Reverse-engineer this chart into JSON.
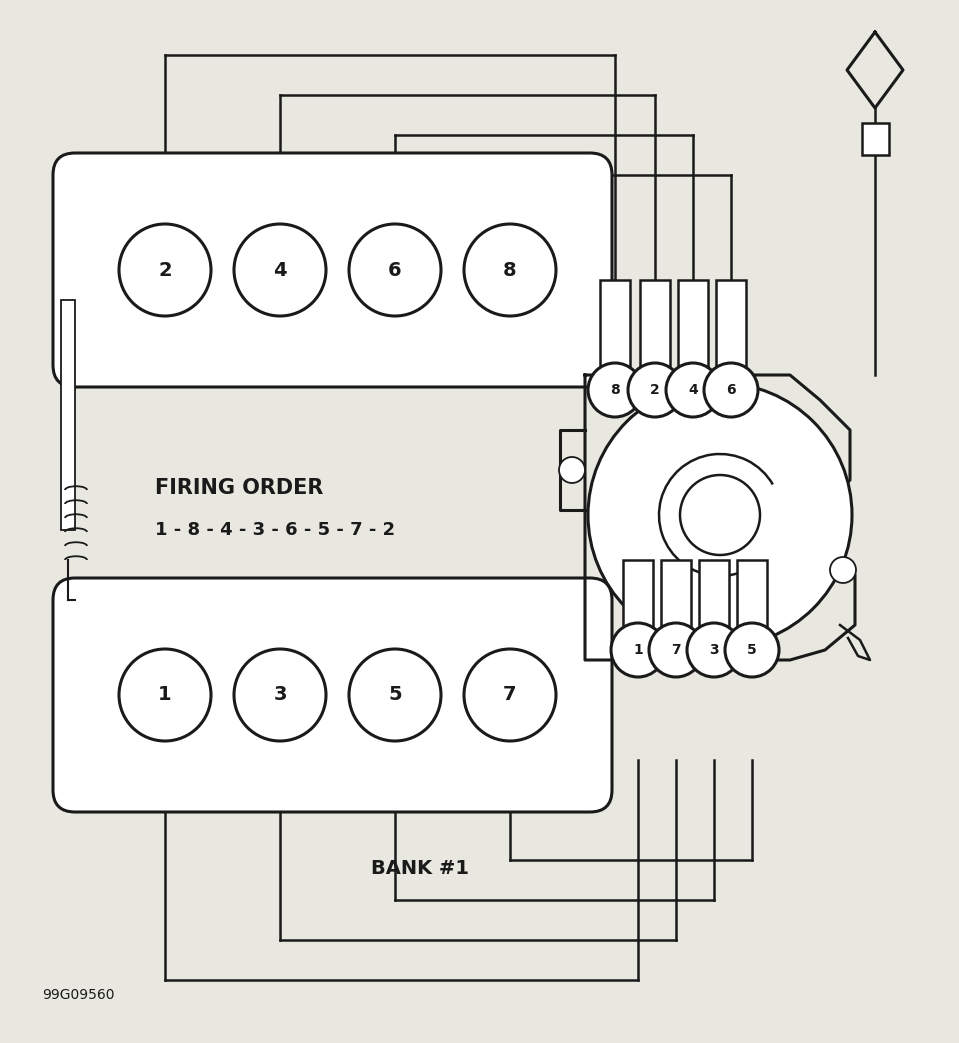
{
  "bg_color": "#e8e8e0",
  "line_color": "#1a1a1a",
  "firing_order_line1": "FIRING ORDER",
  "firing_order_line2": "1 - 8 - 4 - 3 - 6 - 5 - 7 - 2",
  "bank_label": "BANK #1",
  "watermark": "99G09560",
  "upper_cylinders": [
    "2",
    "4",
    "6",
    "8"
  ],
  "lower_cylinders": [
    "1",
    "3",
    "5",
    "7"
  ],
  "dist_upper": [
    "8",
    "2",
    "4",
    "6"
  ],
  "dist_lower": [
    "1",
    "7",
    "3",
    "5"
  ]
}
